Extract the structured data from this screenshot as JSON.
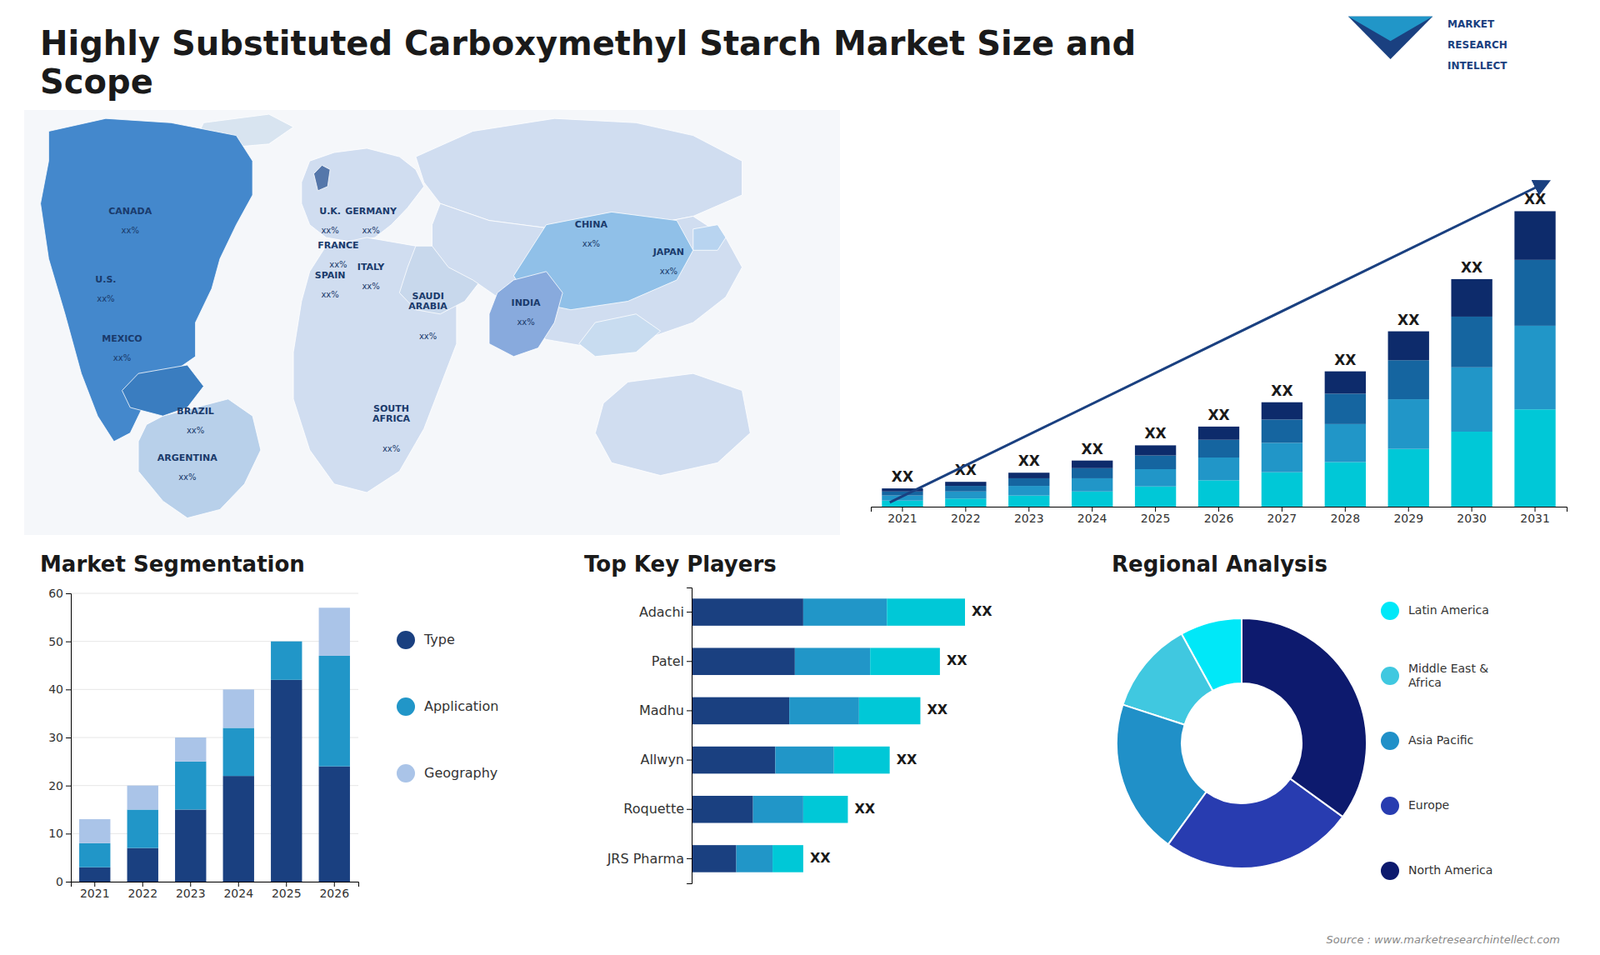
{
  "chart_data": [
    {
      "type": "map",
      "title": "Highly Substituted Carboxymethyl Starch Market Size and\nScope",
      "categories": [
        "CANADA",
        "U.S.",
        "MEXICO",
        "BRAZIL",
        "ARGENTINA",
        "U.K.",
        "FRANCE",
        "SPAIN",
        "GERMANY",
        "ITALY",
        "SAUDI\nARABIA",
        "SOUTH\nAFRICA",
        "CHINA",
        "INDIA",
        "JAPAN"
      ],
      "annotations": [
        "xx%",
        "xx%",
        "xx%",
        "xx%",
        "xx%",
        "xx%",
        "xx%",
        "xx%",
        "xx%",
        "xx%",
        "xx%",
        "xx%",
        "xx%",
        "xx%",
        "xx%",
        "MARKET",
        "RESEARCH",
        "INTELLECT",
        "Source : www.marketresearchintellect.com"
      ]
    },
    {
      "type": "bar",
      "stacked": true,
      "tick_labels": "x",
      "categories": [
        "2021",
        "2022",
        "2023",
        "2024",
        "2025",
        "2026",
        "2027",
        "2028",
        "2029",
        "2030",
        "2031"
      ],
      "series": [
        {
          "color": "#00c8d7",
          "values": [
            1.2,
            1.6,
            2.2,
            3.0,
            4.0,
            5.2,
            6.8,
            8.8,
            11.4,
            14.8,
            19.2
          ]
        },
        {
          "color": "#2196c8",
          "values": [
            1.0,
            1.4,
            1.9,
            2.6,
            3.4,
            4.5,
            5.8,
            7.5,
            9.8,
            12.7,
            16.5
          ]
        },
        {
          "color": "#1565a0",
          "values": [
            0.8,
            1.1,
            1.5,
            2.0,
            2.7,
            3.5,
            4.6,
            6.0,
            7.7,
            10.0,
            13.0
          ]
        },
        {
          "color": "#0d2b6b",
          "values": [
            0.6,
            0.8,
            1.1,
            1.5,
            2.0,
            2.6,
            3.4,
            4.4,
            5.7,
            7.4,
            9.6
          ]
        }
      ],
      "ylim": [
        0,
        76.956
      ],
      "annotations": [
        "XX",
        "XX",
        "XX",
        "XX",
        "XX",
        "XX",
        "XX",
        "XX",
        "XX",
        "XX",
        "XX"
      ]
    },
    {
      "type": "bar",
      "stacked": true,
      "title": "Market Segmentation",
      "categories": [
        "2021",
        "2022",
        "2023",
        "2024",
        "2025",
        "2026"
      ],
      "series": [
        {
          "name": "Type",
          "color": "#1a4080",
          "values": [
            3,
            7,
            15,
            22,
            42,
            24
          ]
        },
        {
          "name": "Application",
          "color": "#2196c8",
          "values": [
            5,
            8,
            10,
            10,
            8,
            23
          ]
        },
        {
          "name": "Geography",
          "color": "#aac4e8",
          "values": [
            5,
            5,
            5,
            8,
            0,
            10
          ]
        }
      ],
      "ylim": [
        0,
        60
      ],
      "yticks": [
        0,
        10,
        20,
        30,
        40,
        50,
        60
      ],
      "grid": true,
      "legend": "right"
    },
    {
      "type": "bar",
      "orientation": "horizontal",
      "stacked": true,
      "tick_labels": "y",
      "title": "Top Key Players",
      "categories": [
        "Adachi",
        "Patel",
        "Madhu",
        "Allwyn",
        "Roquette",
        "JRS Pharma"
      ],
      "series": [
        {
          "color": "#1a4080",
          "values": [
            0.4,
            0.37,
            0.35,
            0.3,
            0.22,
            0.16
          ]
        },
        {
          "color": "#2196c8",
          "values": [
            0.3,
            0.27,
            0.25,
            0.21,
            0.18,
            0.13
          ]
        },
        {
          "color": "#00c8d7",
          "values": [
            0.28,
            0.25,
            0.22,
            0.2,
            0.16,
            0.11
          ]
        }
      ],
      "xlim": [
        0,
        1.225
      ],
      "annotations": [
        "XX",
        "XX",
        "XX",
        "XX",
        "XX",
        "XX"
      ]
    },
    {
      "type": "donut",
      "title": "Regional Analysis",
      "legend": "right",
      "categories": [
        "Latin America",
        "Middle East &\nAfrica",
        "Asia Pacific",
        "Europe",
        "North America"
      ],
      "values": [
        8,
        12,
        20,
        25,
        35
      ],
      "colors": [
        "#00e8f8",
        "#40c8e0",
        "#2090c8",
        "#283cb0",
        "#0d1a6e"
      ]
    }
  ]
}
